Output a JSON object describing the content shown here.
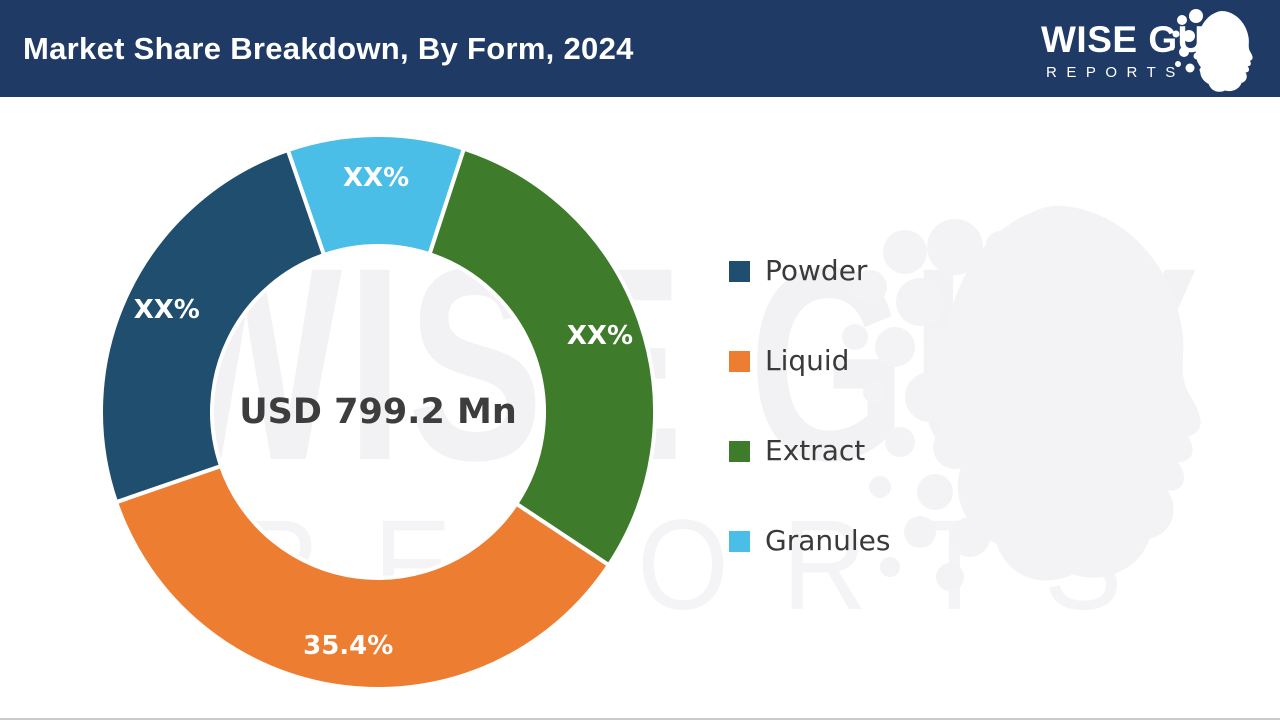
{
  "header": {
    "title": "Market Share Breakdown, By Form, 2024",
    "logo_line1": "WISE GUY",
    "logo_line2": "REPORTS"
  },
  "watermark": {
    "line1": "WISE GUY",
    "line2": "REPORTS"
  },
  "chart_data": {
    "type": "pie",
    "subtype": "donut",
    "title": "Market Share Breakdown, By Form, 2024",
    "center_label": "USD 799.2 Mn",
    "start_angle_deg": -19,
    "donut_hole_ratio": 0.6,
    "legend_position": "right",
    "segments": [
      {
        "label": "Powder",
        "value_pct": 25.0,
        "display_label": "XX%",
        "color": "#1F4E6E"
      },
      {
        "label": "Liquid",
        "value_pct": 35.4,
        "display_label": "35.4%",
        "color": "#ED7D31"
      },
      {
        "label": "Extract",
        "value_pct": 29.3,
        "display_label": "XX%",
        "color": "#3E7C2C"
      },
      {
        "label": "Granules",
        "value_pct": 10.3,
        "display_label": "XX%",
        "color": "#4BBEE7"
      }
    ],
    "draw_order_clockwise": [
      "Granules",
      "Extract",
      "Liquid",
      "Powder"
    ],
    "legend_order": [
      "Powder",
      "Liquid",
      "Extract",
      "Granules"
    ]
  },
  "colors": {
    "header_bg": "#1F3A64",
    "slice_border": "#FFFFFF",
    "legend_text": "#3A3A3A",
    "center_text": "#3D3D3D",
    "watermark": "#F2F2F4",
    "footer_line": "#CBCBCB"
  }
}
